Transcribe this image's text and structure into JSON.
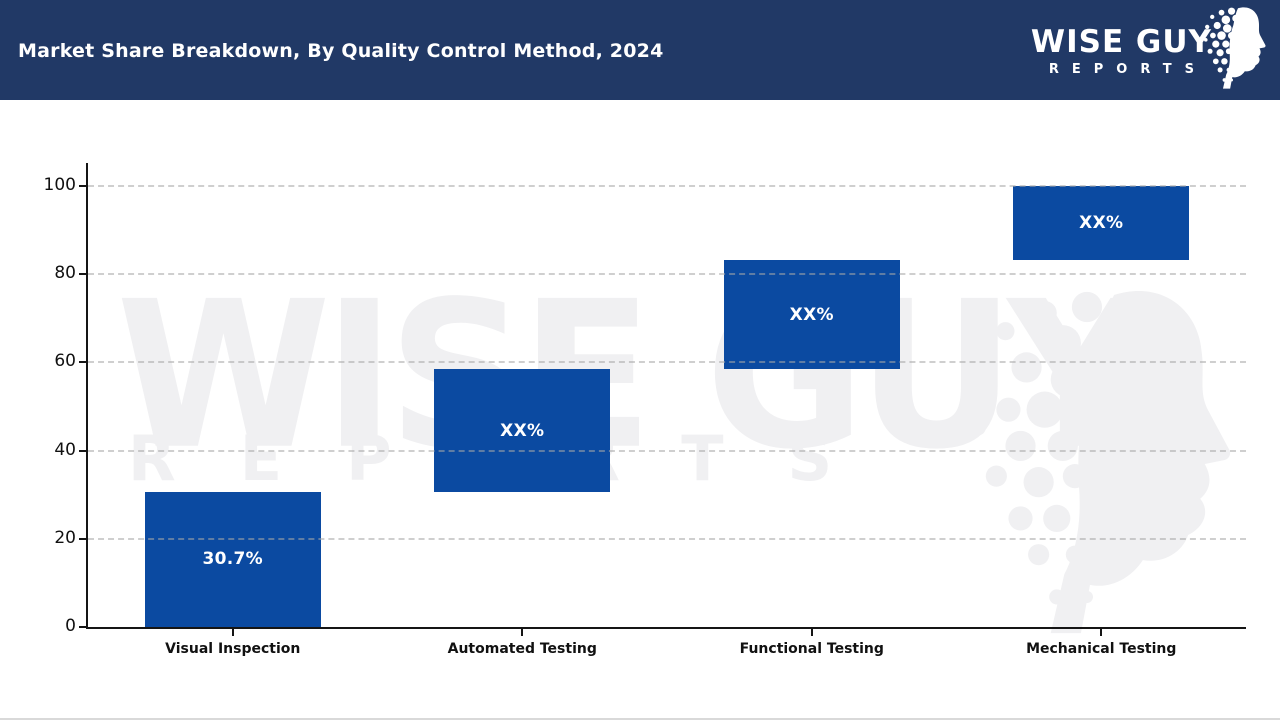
{
  "header": {
    "title": "Market Share Breakdown, By Quality Control Method, 2024",
    "brand": {
      "wordmark": "WISE GUY",
      "subtitle": "REPORTS"
    }
  },
  "watermark": {
    "line1": "WISE GUY",
    "line2": "REPORTS"
  },
  "chart_data": {
    "type": "bar",
    "subtype": "waterfall",
    "title": "Market Share Breakdown, By Quality Control Method, 2024",
    "categories": [
      "Visual Inspection",
      "Automated Testing",
      "Functional Testing",
      "Mechanical Testing"
    ],
    "bars": [
      {
        "category": "Visual Inspection",
        "label": "30.7%",
        "start": 0,
        "end": 30.7
      },
      {
        "category": "Automated Testing",
        "label": "XX%",
        "start": 30.7,
        "end": 58.4
      },
      {
        "category": "Functional Testing",
        "label": "XX%",
        "start": 58.4,
        "end": 83.2
      },
      {
        "category": "Mechanical Testing",
        "label": "XX%",
        "start": 83.2,
        "end": 100
      }
    ],
    "yticks": [
      0,
      20,
      40,
      60,
      80,
      100
    ],
    "ylim": [
      0,
      105
    ],
    "xlabel": "",
    "ylabel": "",
    "grid": "dashed-horizontal",
    "legend": "none",
    "colors": {
      "bar": "#0b4aa1",
      "bar_label": "#ffffff",
      "header_bar": "#213966",
      "axis": "#151515",
      "gridline": "#d8d8d8",
      "watermark": "#f0f0f2"
    }
  }
}
